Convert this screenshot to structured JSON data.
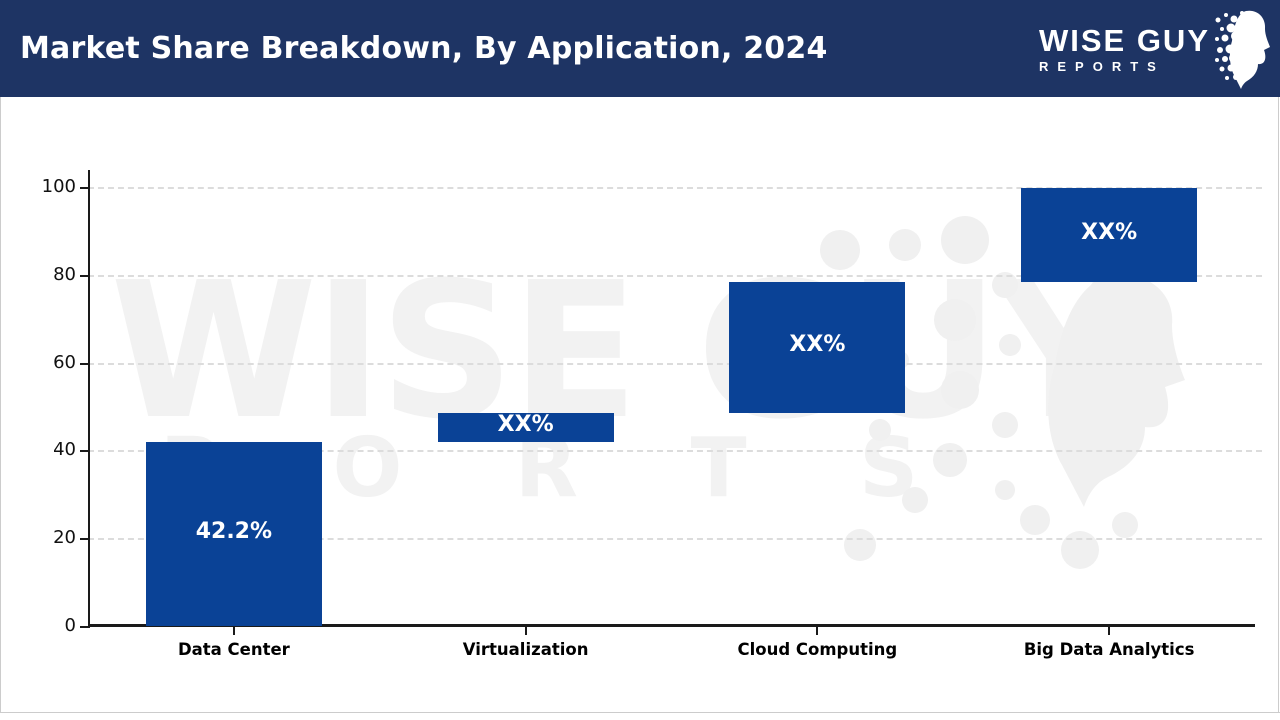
{
  "header": {
    "title": "Market Share Breakdown, By Application, 2024",
    "bg_color": "#1e3464",
    "logo": {
      "line1": "WISE GUY",
      "line2": "REPORTS"
    }
  },
  "watermark": {
    "line1": "WISE GUY",
    "line2": "P O R T S"
  },
  "chart_data": {
    "type": "bar",
    "subtype": "waterfall",
    "title": "Market Share Breakdown, By Application, 2024",
    "categories": [
      "Data Center",
      "Virtualization",
      "Cloud Computing",
      "Big Data Analytics"
    ],
    "segments": [
      {
        "category": "Data Center",
        "start": 0,
        "end": 42.2,
        "label": "42.2%"
      },
      {
        "category": "Virtualization",
        "start": 42.2,
        "end": 48.8,
        "label": "XX%"
      },
      {
        "category": "Cloud Computing",
        "start": 48.8,
        "end": 78.7,
        "label": "XX%"
      },
      {
        "category": "Big Data Analytics",
        "start": 78.7,
        "end": 100,
        "label": "XX%"
      }
    ],
    "yticks": [
      0,
      20,
      40,
      60,
      80,
      100
    ],
    "ylim": [
      0,
      100
    ],
    "xlabel": "",
    "ylabel": "",
    "grid": "horizontal-dashed",
    "legend": "none",
    "bar_color": "#0a4296",
    "label_color": "#ffffff"
  }
}
